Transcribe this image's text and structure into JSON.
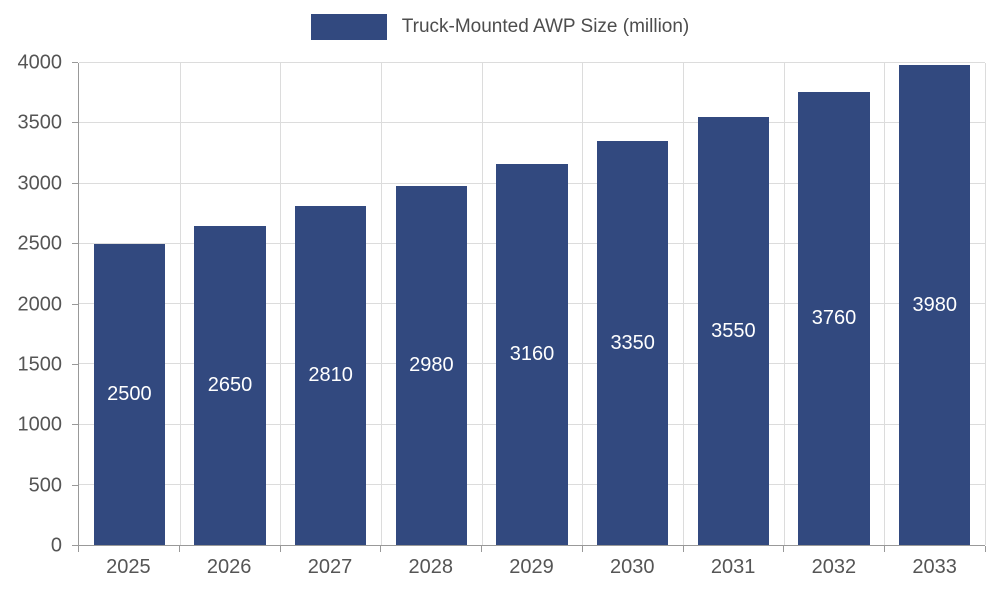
{
  "chart_data": {
    "type": "bar",
    "title": "Truck-Mounted AWP Size (million)",
    "categories": [
      "2025",
      "2026",
      "2027",
      "2028",
      "2029",
      "2030",
      "2031",
      "2032",
      "2033"
    ],
    "values": [
      2500,
      2650,
      2810,
      2980,
      3160,
      3350,
      3550,
      3760,
      3980
    ],
    "xlabel": "",
    "ylabel": "",
    "ylim": [
      0,
      4000
    ],
    "yticks": [
      0,
      500,
      1000,
      1500,
      2000,
      2500,
      3000,
      3500,
      4000
    ],
    "grid": true,
    "legend": {
      "label": "Truck-Mounted AWP Size (million)",
      "position": "top"
    },
    "value_labels": "inside-center",
    "colors": {
      "bar": "#32497F",
      "grid": "#dcdcdc",
      "axis": "#999999",
      "tick_label": "#555555",
      "legend_label": "#4d4d4d",
      "value_label": "#ffffff",
      "background": "#ffffff"
    }
  }
}
